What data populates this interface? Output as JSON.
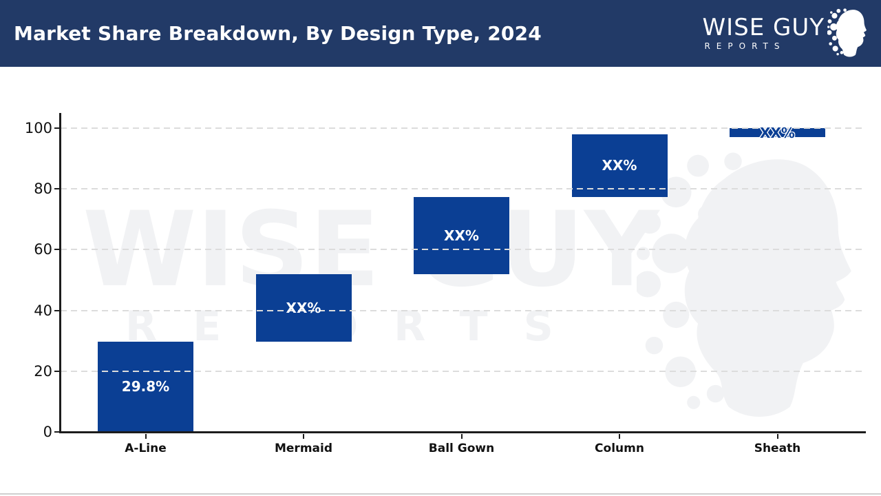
{
  "header": {
    "title": "Market Share Breakdown, By Design Type, 2024",
    "background_color": "#223a67",
    "logo": {
      "line1": "WISE GUY",
      "line2": "REPORTS"
    }
  },
  "watermark": {
    "line1": "WISE GUY",
    "line2": "REPORTS"
  },
  "chart_data": {
    "type": "bar",
    "subtype": "waterfall",
    "title": "Market Share Breakdown, By Design Type, 2024",
    "categories": [
      "A-Line",
      "Mermaid",
      "Ball Gown",
      "Column",
      "Sheath"
    ],
    "segments": [
      {
        "category": "A-Line",
        "start": 0,
        "end": 29.8,
        "label": "29.8%",
        "label_style": "inside-white"
      },
      {
        "category": "Mermaid",
        "start": 29.8,
        "end": 52.0,
        "label": "XX%",
        "label_style": "inside-white"
      },
      {
        "category": "Ball Gown",
        "start": 52.0,
        "end": 77.3,
        "label": "XX%",
        "label_style": "inside-white"
      },
      {
        "category": "Column",
        "start": 77.3,
        "end": 98.0,
        "label": "XX%",
        "label_style": "inside-white"
      },
      {
        "category": "Sheath",
        "start": 97.0,
        "end": 100,
        "label": "XX%",
        "label_style": "overlap-navy"
      }
    ],
    "xlabel": "",
    "ylabel": "",
    "ylim": [
      0,
      100
    ],
    "yticks": [
      0,
      20,
      40,
      60,
      80,
      100
    ],
    "grid": "dashed-horizontal-over-bars",
    "bar_color": "#0b3f94",
    "label_color_inside": "#ffffff",
    "axis_color": "#1c1c1c",
    "gridline_color": "#dcdcdc",
    "legend": "none"
  }
}
